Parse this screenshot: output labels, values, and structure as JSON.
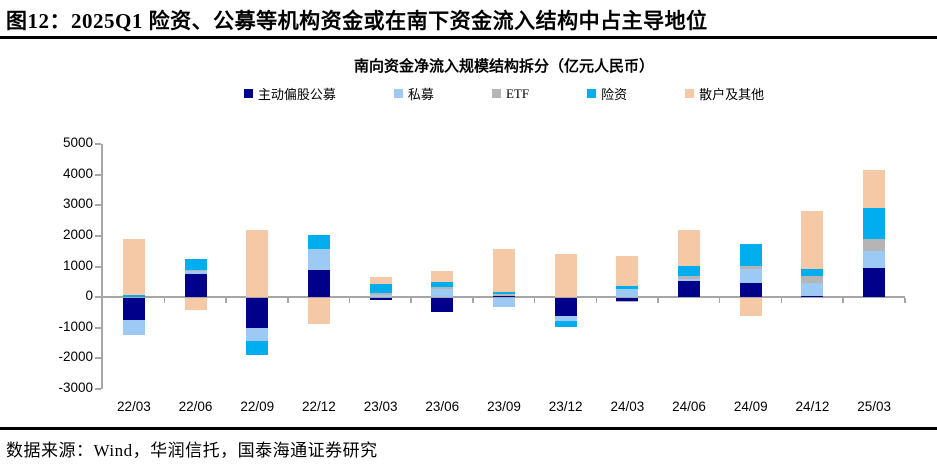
{
  "header": {
    "title": "图12：2025Q1 险资、公募等机构资金或在南下资金流入结构中占主导地位"
  },
  "footer": {
    "source": "数据来源：Wind，华润信托，国泰海通证券研究"
  },
  "chart_data": {
    "type": "bar",
    "stacked": true,
    "title": "南向资金净流入规模结构拆分（亿元人民币）",
    "categories": [
      "22/03",
      "22/06",
      "22/09",
      "22/12",
      "23/03",
      "23/06",
      "23/09",
      "23/12",
      "24/03",
      "24/06",
      "24/09",
      "24/12",
      "25/03"
    ],
    "series": [
      {
        "name": "主动偏股公募",
        "color": "#00008B",
        "values": [
          -700,
          760,
          -980,
          890,
          -60,
          -465,
          35,
          -575,
          -90,
          530,
          455,
          50,
          945
        ]
      },
      {
        "name": "私募",
        "color": "#9CCAF5",
        "values": [
          -510,
          90,
          -410,
          675,
          65,
          270,
          -300,
          -185,
          260,
          65,
          455,
          405,
          565
        ]
      },
      {
        "name": "ETF",
        "color": "#B5B5B5",
        "values": [
          0,
          40,
          0,
          0,
          65,
          75,
          80,
          0,
          -30,
          110,
          110,
          250,
          390
        ]
      },
      {
        "name": "险资",
        "color": "#00AEEF",
        "values": [
          75,
          360,
          -460,
          455,
          290,
          145,
          55,
          -195,
          110,
          325,
          705,
          210,
          1020
        ]
      },
      {
        "name": "散户及其他",
        "color": "#F6C9A6",
        "values": [
          1815,
          -380,
          2190,
          -855,
          250,
          360,
          1390,
          1410,
          985,
          1170,
          -570,
          1900,
          1230
        ]
      }
    ],
    "ylim": [
      -3000,
      5000
    ],
    "yticks": [
      5000,
      4000,
      3000,
      2000,
      1000,
      0,
      -1000,
      -2000,
      -3000
    ],
    "legend_position": "top",
    "grid": false,
    "axis_color": "#A6A6A6"
  }
}
